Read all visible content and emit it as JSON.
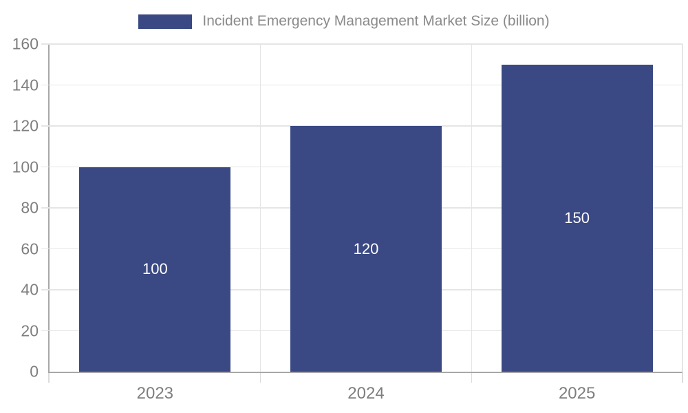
{
  "legend": {
    "label": "Incident Emergency Management Market Size (billion)"
  },
  "chart_data": {
    "type": "bar",
    "title": "Incident Emergency Management Market Size (billion)",
    "categories": [
      "2023",
      "2024",
      "2025"
    ],
    "values": [
      100,
      120,
      150
    ],
    "bar_value_labels": [
      "100",
      "120",
      "150"
    ],
    "xlabel": "",
    "ylabel": "",
    "ylim": [
      0,
      160
    ],
    "yticks": [
      0,
      20,
      40,
      60,
      80,
      100,
      120,
      140,
      160
    ],
    "grid": true,
    "legend_position": "top-center",
    "bar_label_position": "inside-middle"
  },
  "colors": {
    "bar": "#3A4983",
    "bar_label": "#FFFFFF",
    "legend_text": "#8A8A8A",
    "tick_text": "#7E7E7E",
    "axis_line": "#A8A8A8",
    "gridline": "#E5E5E5",
    "tick_mark": "#DCDCDC",
    "background": "#FFFFFF"
  }
}
